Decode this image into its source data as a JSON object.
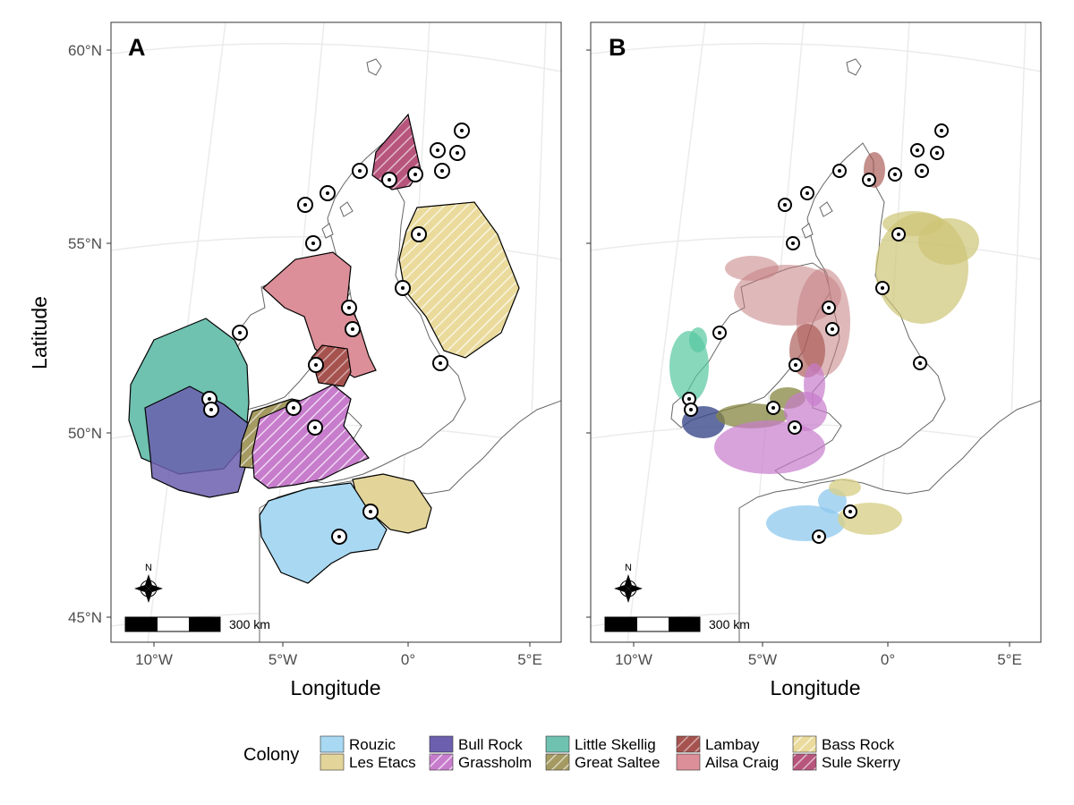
{
  "panels": [
    {
      "label": "A",
      "type": "colony foraging-range polygons"
    },
    {
      "label": "B",
      "type": "GPS tracking points"
    }
  ],
  "axes": {
    "xlabel": "Longitude",
    "ylabel": "Latitude",
    "x_ticks": [
      "10°W",
      "5°W",
      "0°",
      "5°E"
    ],
    "y_ticks": [
      "60°N",
      "55°N",
      "50°N",
      "45°N"
    ]
  },
  "scale_bar": {
    "label": "300 km"
  },
  "north_arrow": {
    "label": "N"
  },
  "legend": {
    "title": "Colony",
    "items": [
      {
        "name": "Rouzic",
        "color": "#a8d8f2",
        "hatch": false
      },
      {
        "name": "Les Etacs",
        "color": "#e3d49a",
        "hatch": false
      },
      {
        "name": "Bull Rock",
        "color": "#6b5fae",
        "hatch": false
      },
      {
        "name": "Grassholm",
        "color": "#c77ccc",
        "hatch": true
      },
      {
        "name": "Little Skellig",
        "color": "#6fc1b0",
        "hatch": false
      },
      {
        "name": "Great Saltee",
        "color": "#a49a62",
        "hatch": true
      },
      {
        "name": "Lambay",
        "color": "#a6534f",
        "hatch": true
      },
      {
        "name": "Ailsa Craig",
        "color": "#dc8f98",
        "hatch": false
      },
      {
        "name": "Bass Rock",
        "color": "#eadb9c",
        "hatch": true
      },
      {
        "name": "Sule Skerry",
        "color": "#b7557c",
        "hatch": true
      }
    ]
  },
  "colors": {
    "panel_border": "#333333",
    "graticule": "#ebebeb",
    "coastline": "#666666"
  }
}
